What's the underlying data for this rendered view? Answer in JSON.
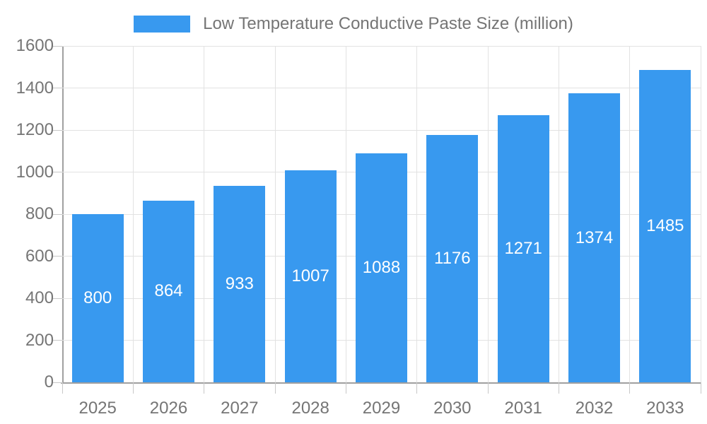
{
  "chart_data": {
    "type": "bar",
    "title": "Low Temperature Conductive Paste Size (million)",
    "legend": "Low Temperature Conductive Paste Size (million)",
    "legend_position": "top-center",
    "categories": [
      "2025",
      "2026",
      "2027",
      "2028",
      "2029",
      "2030",
      "2031",
      "2032",
      "2033"
    ],
    "values": [
      800,
      864,
      933,
      1007,
      1088,
      1176,
      1271,
      1374,
      1485
    ],
    "xlabel": "",
    "ylabel": "",
    "ylim": [
      0,
      1600
    ],
    "ytick_step": 200,
    "ytick_labels": [
      "0",
      "200",
      "400",
      "600",
      "800",
      "1000",
      "1200",
      "1400",
      "1600"
    ],
    "grid": true,
    "colors": {
      "bar": "#3899ef",
      "bar_label": "#ffffff",
      "axis_line": "#a0a0a0",
      "gridline": "#e2e2e2",
      "tick": "#c8c8c8",
      "text": "#757575",
      "background": "#ffffff"
    }
  }
}
